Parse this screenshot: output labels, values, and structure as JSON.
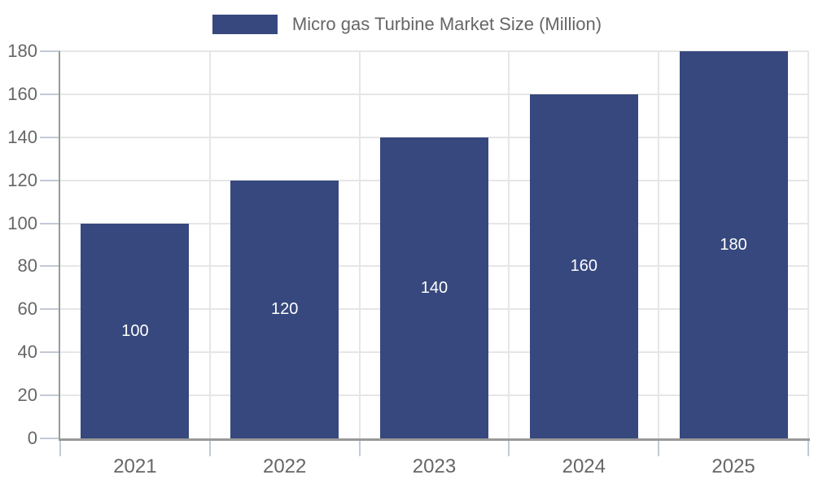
{
  "chart_data": {
    "type": "bar",
    "title": "Micro gas Turbine Market Size (Million)",
    "categories": [
      "2021",
      "2022",
      "2023",
      "2024",
      "2025"
    ],
    "series": [
      {
        "name": "Micro gas Turbine Market Size (Million)",
        "values": [
          100,
          120,
          140,
          160,
          180
        ]
      }
    ],
    "data_labels": [
      "100",
      "120",
      "140",
      "160",
      "180"
    ],
    "xlabel": "",
    "ylabel": "",
    "ylim": [
      0,
      180
    ],
    "ytick_step": 20,
    "yticks": [
      0,
      20,
      40,
      60,
      80,
      100,
      120,
      140,
      160,
      180
    ],
    "grid": true,
    "legend_position": "top-center",
    "colors": {
      "bar": "#37487e",
      "grid": "#e6e6e6",
      "axis_line": "#999999",
      "tick": "#c2c9d6",
      "label_text": "#666666",
      "data_label_text": "#ffffff",
      "background": "#ffffff"
    }
  },
  "legend": {
    "label": "Micro gas Turbine Market Size (Million)"
  }
}
